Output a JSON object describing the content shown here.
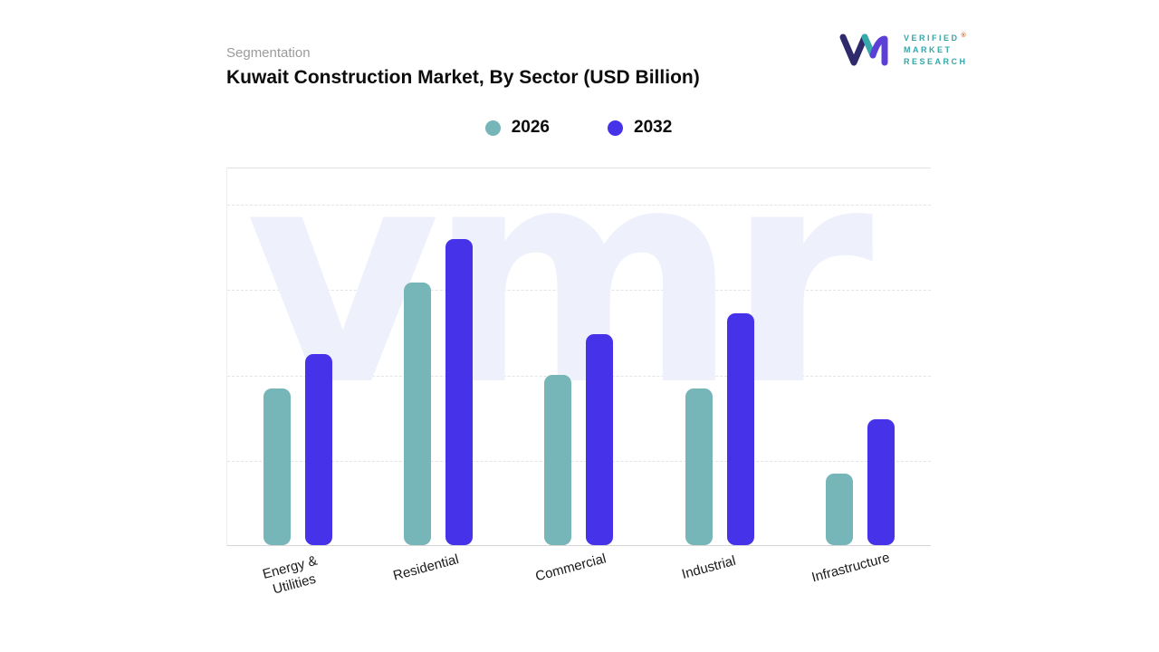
{
  "header": {
    "eyebrow": "Segmentation",
    "title": "Kuwait Construction Market, By Sector (USD Billion)"
  },
  "logo": {
    "name_lines": [
      "VERIFIED",
      "MARKET",
      "RESEARCH"
    ],
    "registered": "®"
  },
  "watermark": "vmr",
  "chart_data": {
    "type": "bar",
    "title": "Kuwait Construction Market, By Sector (USD Billion)",
    "categories": [
      "Energy &\nUtilities",
      "Residential",
      "Commercial",
      "Industrial",
      "Infrastructure"
    ],
    "series": [
      {
        "name": "2026",
        "color": "#76b5b8",
        "values": [
          46,
          77,
          50,
          46,
          21
        ]
      },
      {
        "name": "2032",
        "color": "#4632e8",
        "values": [
          56,
          90,
          62,
          68,
          37
        ]
      }
    ],
    "ylim": [
      0,
      100
    ],
    "y_axis_labels_visible": false,
    "grid": "dashed-horizontal",
    "legend_position": "top",
    "colors": {
      "series_2026": "#76b5b8",
      "series_2032": "#4632e8",
      "watermark": "#eef1fb"
    }
  }
}
